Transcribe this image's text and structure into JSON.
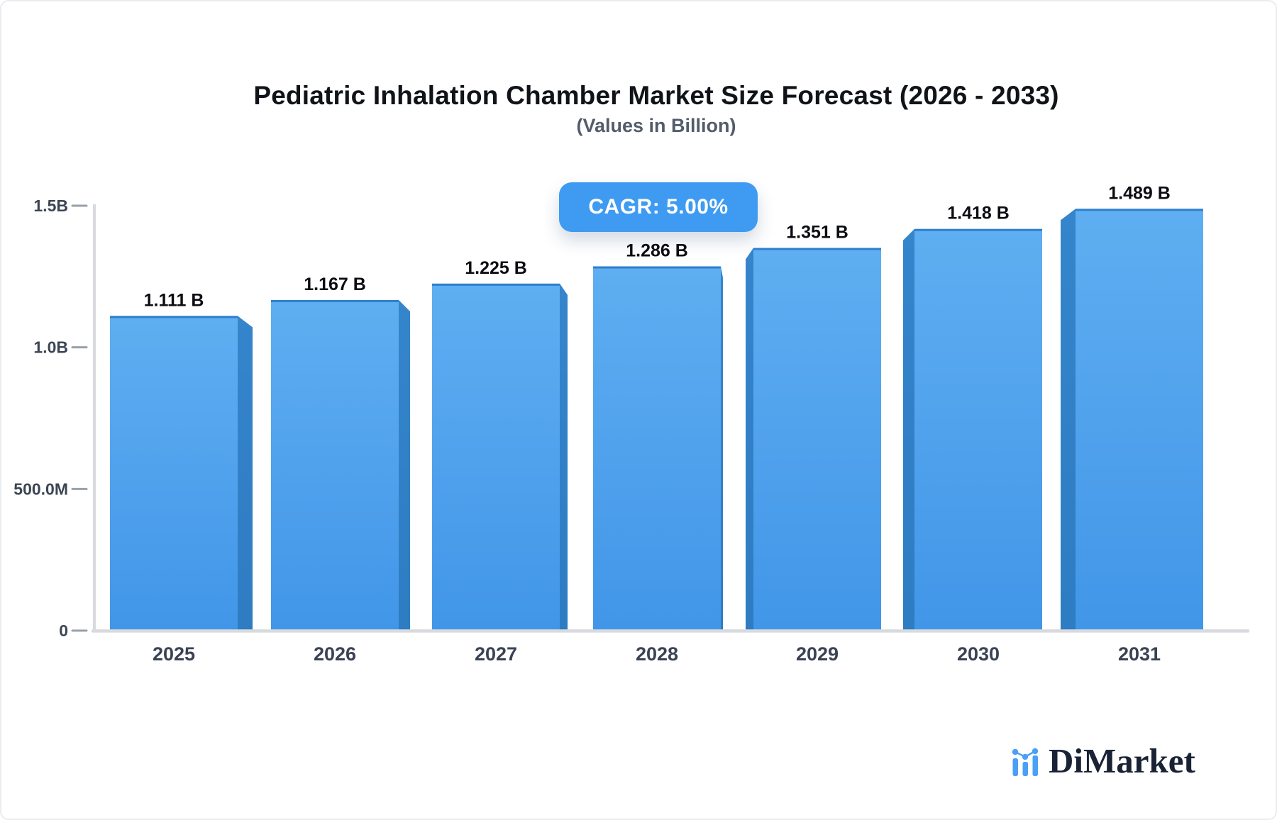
{
  "header": {
    "title": "Pediatric Inhalation Chamber Market Size Forecast (2026 - 2033)",
    "subtitle": "(Values in Billion)"
  },
  "badge": {
    "label": "CAGR: 5.00%"
  },
  "chart_data": {
    "type": "bar",
    "title": "Pediatric Inhalation Chamber Market Size Forecast (2026 - 2033)",
    "subtitle": "(Values in Billion)",
    "categories": [
      "2025",
      "2026",
      "2027",
      "2028",
      "2029",
      "2030",
      "2031"
    ],
    "values": [
      1.111,
      1.167,
      1.225,
      1.286,
      1.351,
      1.418,
      1.489
    ],
    "bar_labels": [
      "1.111 B",
      "1.167 B",
      "1.225 B",
      "1.286 B",
      "1.351 B",
      "1.418 B",
      "1.489 B"
    ],
    "y_ticks": [
      {
        "value": 0,
        "label": "0"
      },
      {
        "value": 0.5,
        "label": "500.0M"
      },
      {
        "value": 1.0,
        "label": "1.0B"
      },
      {
        "value": 1.5,
        "label": "1.5B"
      }
    ],
    "ylim": [
      0,
      1.5
    ],
    "xlabel": "",
    "ylabel": "",
    "grid": false,
    "legend": false,
    "annotation": "CAGR: 5.00%"
  },
  "logo": {
    "brand": "DiMarket",
    "icon": "mini-bar-chart-icon"
  },
  "colors": {
    "bar_front_top": "#5eaef1",
    "bar_front_bottom": "#4296e8",
    "bar_side_top": "#3585cc",
    "bar_side_bottom": "#2e7cc2",
    "bar_top_edge": "#2f80cc",
    "badge_bg": "#3e9bf1",
    "badge_text": "#ffffff",
    "axis": "#d9dadd",
    "tick": "#9aa0aa",
    "tick_label": "#3c4554",
    "value_label": "#0b0d12",
    "category_label": "#3a4254",
    "title": "#101318",
    "subtitle": "#535c6b",
    "logo_text": "#1a2336",
    "logo_icon": "#4ba0f6"
  }
}
